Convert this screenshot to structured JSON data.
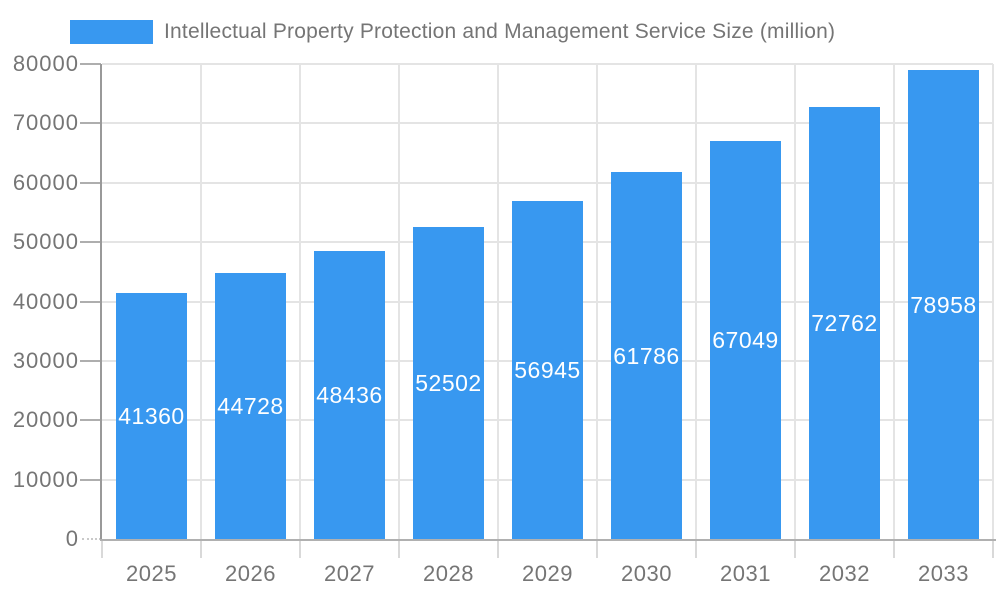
{
  "legend": {
    "label": "Intellectual Property Protection and Management Service Size (million)",
    "swatch_color": "#3898F0"
  },
  "chart_data": {
    "type": "bar",
    "title": "Intellectual Property Protection and Management Service Size (million)",
    "categories": [
      "2025",
      "2026",
      "2027",
      "2028",
      "2029",
      "2030",
      "2031",
      "2032",
      "2033"
    ],
    "series": [
      {
        "name": "Intellectual Property Protection and Management Service Size (million)",
        "values": [
          41360,
          44728,
          48436,
          52502,
          56945,
          61786,
          67049,
          72762,
          78958
        ],
        "color": "#3898F0"
      }
    ],
    "value_labels": {
      "visible": true,
      "position": "inside-middle",
      "color": "#ffffff"
    },
    "xlabel": "",
    "ylabel": "",
    "ylim": [
      0,
      80000
    ],
    "ytick_interval": 10000,
    "yticks": [
      0,
      10000,
      20000,
      30000,
      40000,
      50000,
      60000,
      70000,
      80000
    ],
    "grid": true,
    "vertical_gridlines": true,
    "legend_position": "top"
  },
  "colors": {
    "background": "#ffffff",
    "bar": "#3898F0",
    "axis_text": "#757575",
    "grid_line": "#e4e4e4",
    "axis_line_x": "#b0b0b0",
    "axis_line_y": "#999999",
    "x_tick": "#d9d9d9",
    "y_tick": "#aeaeae",
    "zero_tick": "#c9c9c9",
    "value_label": "#ffffff"
  }
}
